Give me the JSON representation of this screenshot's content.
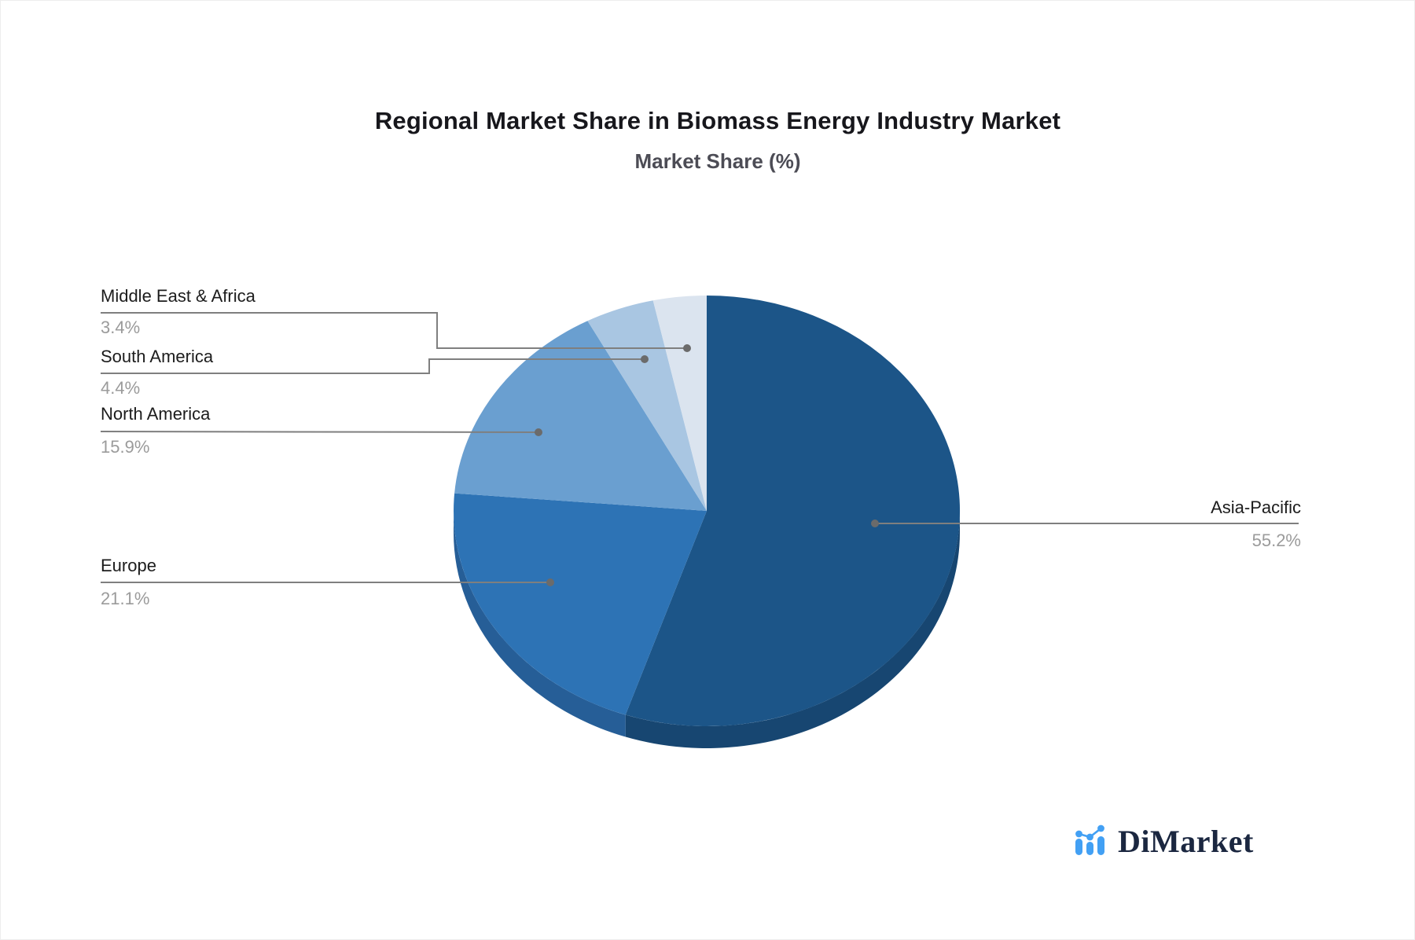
{
  "page": {
    "background": "#ffffff"
  },
  "header": {
    "title": "Regional Market Share in Biomass Energy Industry Market",
    "subtitle": "Market Share (%)"
  },
  "brand": {
    "name": "DiMarket",
    "icon": "bar-chart-logo-icon",
    "icon_color": "#42a0f4",
    "text_color": "#1b2740"
  },
  "chart_data": {
    "type": "pie",
    "title": "Regional Market Share in Biomass Energy Industry Market",
    "subtitle": "Market Share (%)",
    "unit": "%",
    "style": "3d",
    "direction": "clockwise",
    "start_angle_deg": 0,
    "legend_position": "none",
    "slices": [
      {
        "label": "Asia-Pacific",
        "value": 55.2,
        "display": "55.2%",
        "color": "#1c5588",
        "side_color": "#174671",
        "label_side": "right"
      },
      {
        "label": "Europe",
        "value": 21.1,
        "display": "21.1%",
        "color": "#2d73b5",
        "side_color": "#265e97",
        "label_side": "left"
      },
      {
        "label": "North America",
        "value": 15.9,
        "display": "15.9%",
        "color": "#6a9fd0",
        "side_color": "#5a8cbf",
        "label_side": "left"
      },
      {
        "label": "South America",
        "value": 4.4,
        "display": "4.4%",
        "color": "#a9c6e2",
        "side_color": "#90b3d6",
        "label_side": "left"
      },
      {
        "label": "Middle East & Africa",
        "value": 3.4,
        "display": "3.4%",
        "color": "#dbe4ef",
        "side_color": "#c3d3e5",
        "label_side": "left"
      }
    ],
    "colors": {
      "label_text": "#1c1c1c",
      "percent_text": "#9b9b9b",
      "leader_line": "#7f7f7f",
      "leader_dot": "#6b6b6b"
    }
  }
}
